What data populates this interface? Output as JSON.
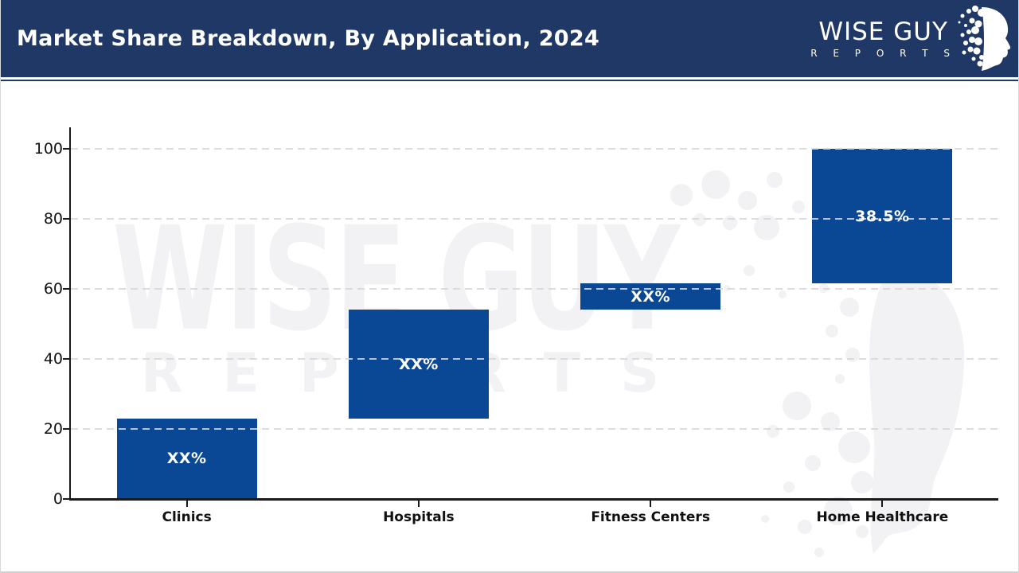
{
  "header": {
    "title": "Market Share Breakdown, By Application, 2024",
    "logo": {
      "wordmark": "WISE GUY",
      "subtext": "R E P O R T S"
    }
  },
  "watermark": {
    "line1": "WISE GUY",
    "line2": "REPORTS"
  },
  "chart_data": {
    "type": "bar",
    "subtype": "floating-waterfall-segments",
    "title": "Market Share Breakdown, By Application, 2024",
    "categories": [
      "Clinics",
      "Hospitals",
      "Fitness Centers",
      "Home Healthcare"
    ],
    "bars": [
      {
        "category": "Clinics",
        "start": 0,
        "end": 23,
        "label": "XX%"
      },
      {
        "category": "Hospitals",
        "start": 23,
        "end": 54,
        "label": "XX%"
      },
      {
        "category": "Fitness Centers",
        "start": 54,
        "end": 61.5,
        "label": "XX%"
      },
      {
        "category": "Home Healthcare",
        "start": 61.5,
        "end": 100,
        "label": "38.5%"
      }
    ],
    "xlabel": "",
    "ylabel": "",
    "ylim": [
      0,
      105
    ],
    "yticks": [
      0,
      20,
      40,
      60,
      80,
      100
    ],
    "grid": "horizontal-dashed",
    "legend": "none",
    "bar_color": "#0A4896",
    "bar_label_color": "#FFFFFF"
  },
  "colors": {
    "header_bg": "#1F3866",
    "bar": "#0A4896",
    "gridline": "#D7D7D7",
    "axis": "#1A1A1A",
    "watermark": "#F2F2F4",
    "frame_border": "#CFCFCF"
  }
}
